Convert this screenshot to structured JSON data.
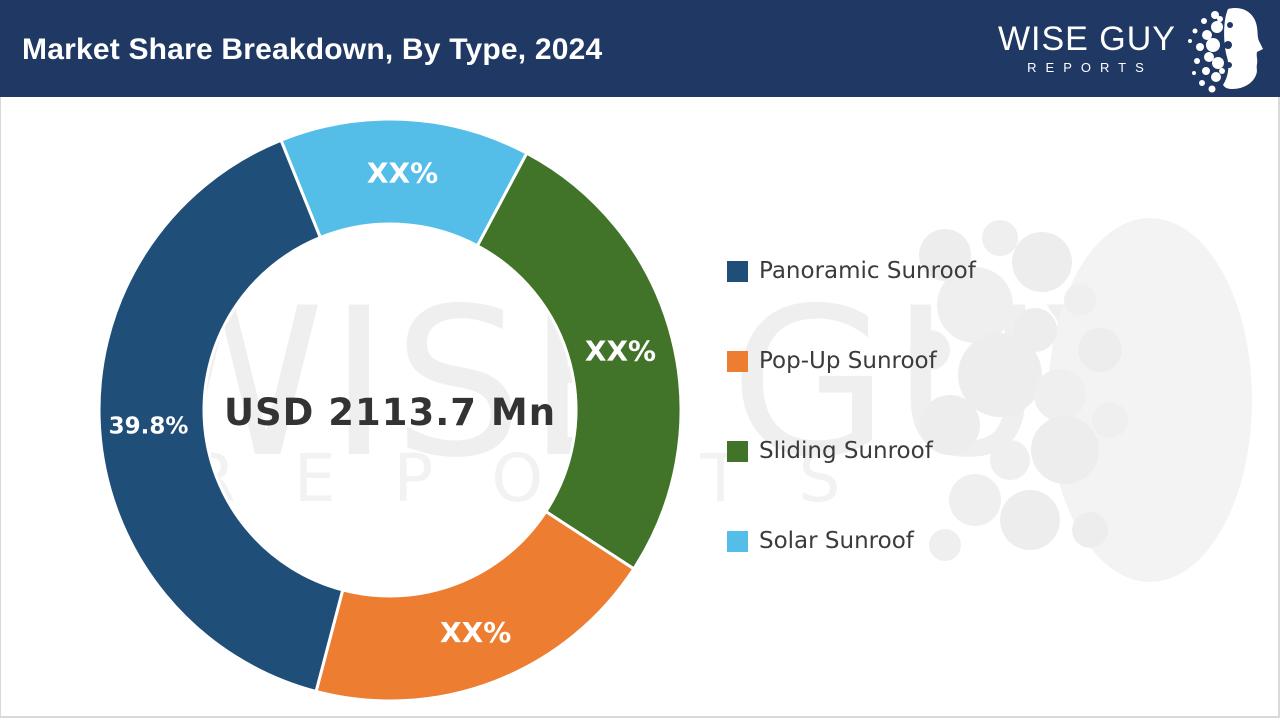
{
  "header": {
    "title": "Market Share Breakdown, By Type, 2024"
  },
  "logo": {
    "name": "WISE GUY",
    "tagline": "REPORTS"
  },
  "watermark": {
    "line1": "WISE GUY",
    "line2": "REPORTS"
  },
  "chart_data": {
    "type": "pie",
    "subtype": "donut",
    "title": "Market Share Breakdown, By Type, 2024",
    "center_label": "USD 2113.7 Mn",
    "categories": [
      "Panoramic Sunroof",
      "Pop-Up Sunroof",
      "Sliding Sunroof",
      "Solar Sunroof"
    ],
    "values": [
      39.8,
      19.9,
      26.4,
      13.9
    ],
    "value_labels": [
      "39.8%",
      "XX%",
      "XX%",
      "XX%"
    ],
    "colors": [
      "#1F4E79",
      "#ED7D31",
      "#417328",
      "#55BEE8"
    ],
    "start_angle_deg": 112,
    "direction": "counterclockwise",
    "legend_position": "right",
    "label_color": "#ffffff"
  },
  "legend": {
    "items": [
      {
        "label": "Panoramic Sunroof",
        "color": "#1F4E79"
      },
      {
        "label": "Pop-Up Sunroof",
        "color": "#ED7D31"
      },
      {
        "label": "Sliding Sunroof",
        "color": "#417328"
      },
      {
        "label": "Solar Sunroof",
        "color": "#55BEE8"
      }
    ]
  }
}
